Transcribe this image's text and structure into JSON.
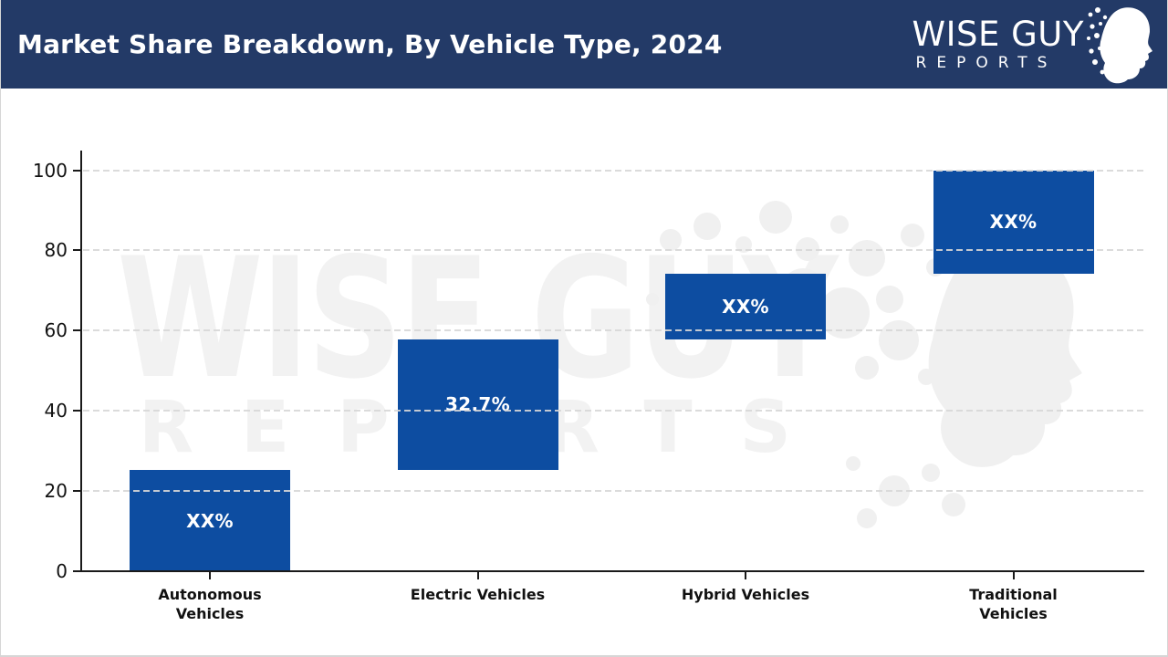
{
  "colors": {
    "header_bg": "#233a67",
    "bar_blue": "#0d4da1",
    "axis": "#1a1a1a",
    "gridline": "#d7d7d7",
    "watermark": "#f2f2f2",
    "title_text": "#ffffff",
    "bar_label_text": "#ffffff"
  },
  "header": {
    "title": "Market Share Breakdown, By Vehicle Type, 2024",
    "logo": {
      "name": "WISE GUY",
      "sub": "REPORTS"
    }
  },
  "watermark": {
    "name": "WISE GUY",
    "sub": "REPORTS"
  },
  "chart_data": {
    "type": "bar",
    "subtype": "waterfall",
    "title": "Market Share Breakdown, By Vehicle Type, 2024",
    "categories": [
      "Autonomous Vehicles",
      "Electric Vehicles",
      "Hybrid Vehicles",
      "Traditional Vehicles"
    ],
    "categories_display": [
      [
        "Autonomous",
        "Vehicles"
      ],
      [
        "Electric Vehicles"
      ],
      [
        "Hybrid Vehicles"
      ],
      [
        "Traditional",
        "Vehicles"
      ]
    ],
    "bars": [
      {
        "category": "Autonomous Vehicles",
        "label": "XX%",
        "start": 0,
        "end": 25.2,
        "value_est": 25.2
      },
      {
        "category": "Electric Vehicles",
        "label": "32.7%",
        "start": 25.2,
        "end": 57.9,
        "value_est": 32.7
      },
      {
        "category": "Hybrid Vehicles",
        "label": "XX%",
        "start": 57.9,
        "end": 74.2,
        "value_est": 16.3
      },
      {
        "category": "Traditional Vehicles",
        "label": "XX%",
        "start": 74.2,
        "end": 100.0,
        "value_est": 25.8
      }
    ],
    "shown_value_labels": [
      "XX%",
      "32.7%",
      "XX%",
      "XX%"
    ],
    "xlabel": "",
    "ylabel": "",
    "ylim": [
      0,
      100
    ],
    "yticks": [
      0,
      20,
      40,
      60,
      80,
      100
    ],
    "grid": "horizontal dashed, drawn over bars",
    "legend": "none"
  }
}
